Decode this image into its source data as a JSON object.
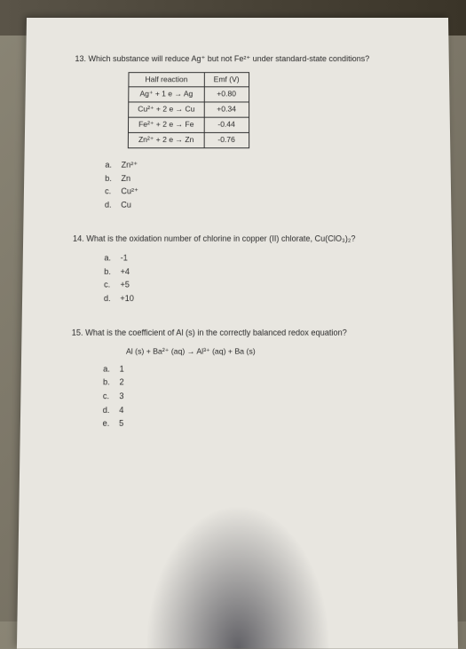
{
  "q13": {
    "number": "13.",
    "text": "Which substance will reduce Ag⁺ but not Fe²⁺ under standard-state conditions?",
    "table": {
      "headers": [
        "Half reaction",
        "Emf (V)"
      ],
      "rows": [
        [
          "Ag⁺ + 1 e → Ag",
          "+0.80"
        ],
        [
          "Cu²⁺ + 2 e → Cu",
          "+0.34"
        ],
        [
          "Fe²⁺ + 2 e → Fe",
          "-0.44"
        ],
        [
          "Zn²⁺ + 2 e → Zn",
          "-0.76"
        ]
      ]
    },
    "options": [
      {
        "label": "a.",
        "text": "Zn²⁺"
      },
      {
        "label": "b.",
        "text": "Zn"
      },
      {
        "label": "c.",
        "text": "Cu²⁺"
      },
      {
        "label": "d.",
        "text": "Cu"
      }
    ]
  },
  "q14": {
    "number": "14.",
    "text": "What is the oxidation number of chlorine in copper (II) chlorate, Cu(ClO₃)₂?",
    "options": [
      {
        "label": "a.",
        "text": "-1"
      },
      {
        "label": "b.",
        "text": "+4"
      },
      {
        "label": "c.",
        "text": "+5"
      },
      {
        "label": "d.",
        "text": "+10"
      }
    ]
  },
  "q15": {
    "number": "15.",
    "text": "What is the coefficient of Al (s) in the correctly balanced redox equation?",
    "equation": "Al (s) + Ba²⁺ (aq) → Al³⁺ (aq) + Ba (s)",
    "options": [
      {
        "label": "a.",
        "text": "1"
      },
      {
        "label": "b.",
        "text": "2"
      },
      {
        "label": "c.",
        "text": "3"
      },
      {
        "label": "d.",
        "text": "4"
      },
      {
        "label": "e.",
        "text": "5"
      }
    ]
  }
}
